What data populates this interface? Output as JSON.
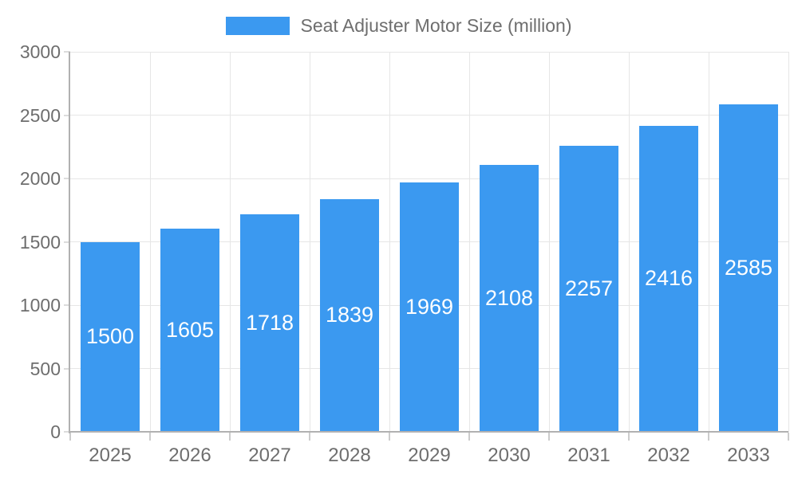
{
  "chart_data": {
    "type": "bar",
    "title": "Seat Adjuster Motor Size (million)",
    "categories": [
      "2025",
      "2026",
      "2027",
      "2028",
      "2029",
      "2030",
      "2031",
      "2032",
      "2033"
    ],
    "values": [
      1500,
      1605,
      1718,
      1839,
      1969,
      2108,
      2257,
      2416,
      2585
    ],
    "series": [
      {
        "name": "Seat Adjuster Motor Size (million)",
        "values": [
          1500,
          1605,
          1718,
          1839,
          1969,
          2108,
          2257,
          2416,
          2585
        ]
      }
    ],
    "xlabel": "",
    "ylabel": "",
    "ylim": [
      0,
      3000
    ],
    "y_ticks": [
      0,
      500,
      1000,
      1500,
      2000,
      2500,
      3000
    ],
    "grid": "both",
    "legend_position": "top",
    "value_labels": "inside-center",
    "colors": {
      "bar": "#3b99f0",
      "gridline": "#e6e6e6",
      "axis_line": "#b1b1b1",
      "tick": "#cccccc",
      "axis_text": "#6e6e6e",
      "value_text": "#ffffff",
      "background": "#ffffff"
    }
  }
}
